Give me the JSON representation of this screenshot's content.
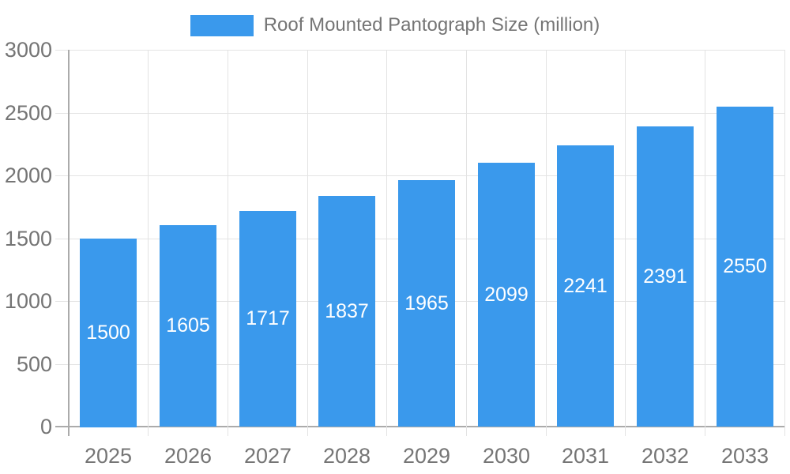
{
  "legend": {
    "label": "Roof Mounted Pantograph Size (million)"
  },
  "chart_data": {
    "type": "bar",
    "title": "Roof Mounted Pantograph Size (million)",
    "series_name": "Roof Mounted Pantograph Size (million)",
    "categories": [
      "2025",
      "2026",
      "2027",
      "2028",
      "2029",
      "2030",
      "2031",
      "2032",
      "2033"
    ],
    "values": [
      1500,
      1605,
      1717,
      1837,
      1965,
      2099,
      2241,
      2391,
      2550
    ],
    "xlabel": "",
    "ylabel": "",
    "ylim": [
      0,
      3000
    ],
    "yticks": [
      0,
      500,
      1000,
      1500,
      2000,
      2500,
      3000
    ],
    "grid": true,
    "legend_position": "top-center",
    "value_labels": "inside-center",
    "colors": {
      "bar": "#3A99EC",
      "grid_line": "#E3E3E3",
      "axis_line": "#ABABAB",
      "tick_text": "#757575",
      "value_label_text": "#FFFFFF",
      "background": "#FFFFFF"
    }
  }
}
